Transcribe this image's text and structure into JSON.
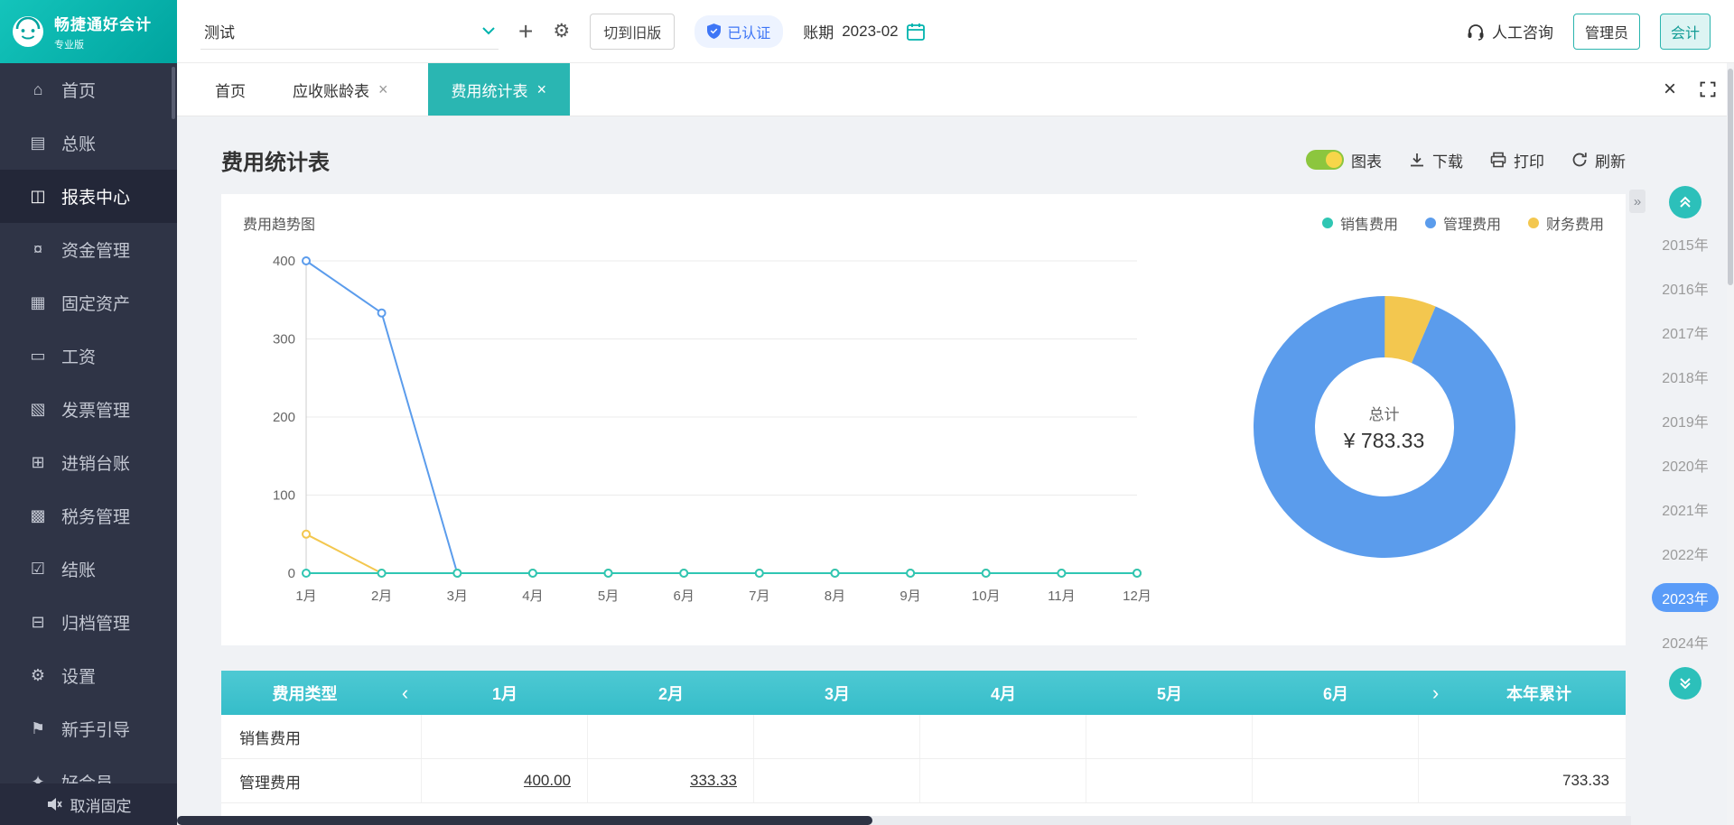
{
  "colors": {
    "brand_teal": "#00b3ad",
    "sidebar_bg": "#2f3446",
    "tab_active": "#2ab6b2",
    "table_header_teal": "#3fc0cb",
    "year_active_blue": "#5a9cf8",
    "series_sales_teal": "#2fc6b3",
    "series_admin_blue": "#5b9cec",
    "series_finance_yellow": "#f3c74f",
    "certified_blue": "#3e76f6",
    "toggle_green": "#8cc63e",
    "toggle_knob_yellow": "#f7d64a"
  },
  "logo": {
    "title": "畅捷通好会计",
    "subtitle": "专业版"
  },
  "topbar": {
    "company": "测试",
    "switch_old": "切到旧版",
    "certified": "已认证",
    "period_label": "账期",
    "period_value": "2023-02",
    "support": "人工咨询",
    "admin": "管理员",
    "role": "会计"
  },
  "tabbar": {
    "tabs": [
      {
        "label": "首页",
        "closable": false,
        "active": false
      },
      {
        "label": "应收账龄表",
        "closable": true,
        "active": false
      },
      {
        "label": "费用统计表",
        "closable": true,
        "active": true
      }
    ]
  },
  "sidebar": {
    "items": [
      {
        "id": "home",
        "label": "首页",
        "icon": "home",
        "active": false
      },
      {
        "id": "ledger",
        "label": "总账",
        "icon": "ledger",
        "active": false
      },
      {
        "id": "reports",
        "label": "报表中心",
        "icon": "report",
        "active": true
      },
      {
        "id": "funds",
        "label": "资金管理",
        "icon": "funds",
        "active": false
      },
      {
        "id": "fixed-assets",
        "label": "固定资产",
        "icon": "assets",
        "active": false
      },
      {
        "id": "salary",
        "label": "工资",
        "icon": "salary",
        "active": false
      },
      {
        "id": "invoice",
        "label": "发票管理",
        "icon": "invoice",
        "active": false
      },
      {
        "id": "inventory",
        "label": "进销台账",
        "icon": "inventory",
        "active": false
      },
      {
        "id": "tax",
        "label": "税务管理",
        "icon": "tax",
        "active": false
      },
      {
        "id": "closing",
        "label": "结账",
        "icon": "closing",
        "active": false
      },
      {
        "id": "archive",
        "label": "归档管理",
        "icon": "archive",
        "active": false
      },
      {
        "id": "settings",
        "label": "设置",
        "icon": "settings",
        "active": false
      },
      {
        "id": "guide",
        "label": "新手引导",
        "icon": "guide",
        "active": false
      },
      {
        "id": "member",
        "label": "好会员",
        "icon": "member",
        "active": false
      }
    ],
    "footer": "取消固定"
  },
  "page": {
    "title": "费用统计表",
    "toolbar": {
      "chart_toggle": "图表",
      "download": "下载",
      "print": "打印",
      "refresh": "刷新"
    }
  },
  "chart_data": [
    {
      "type": "line",
      "title": "费用趋势图",
      "categories": [
        "1月",
        "2月",
        "3月",
        "4月",
        "5月",
        "6月",
        "7月",
        "8月",
        "9月",
        "10月",
        "11月",
        "12月"
      ],
      "series": [
        {
          "name": "销售费用",
          "color": "#2fc6b3",
          "values": [
            0,
            0,
            0,
            0,
            0,
            0,
            0,
            0,
            0,
            0,
            0,
            0
          ]
        },
        {
          "name": "管理费用",
          "color": "#5b9cec",
          "values": [
            400,
            333.33,
            0,
            0,
            0,
            0,
            0,
            0,
            0,
            0,
            0,
            0
          ]
        },
        {
          "name": "财务费用",
          "color": "#f3c74f",
          "values": [
            50,
            0,
            0,
            0,
            0,
            0,
            0,
            0,
            0,
            0,
            0,
            0
          ]
        }
      ],
      "ylim": [
        0,
        400
      ],
      "yticks": [
        0,
        100,
        200,
        300,
        400
      ],
      "legend": [
        "销售费用",
        "管理费用",
        "财务费用"
      ],
      "legend_position": "top-right",
      "grid": true
    },
    {
      "type": "pie",
      "donut": true,
      "center_label": "总计",
      "center_value": "¥ 783.33",
      "total": 783.33,
      "slices": [
        {
          "name": "财务费用",
          "value": 50,
          "color": "#f3c74f"
        },
        {
          "name": "管理费用",
          "value": 733.33,
          "color": "#5b9cec"
        },
        {
          "name": "销售费用",
          "value": 0,
          "color": "#2fc6b3"
        }
      ]
    }
  ],
  "table": {
    "first_column": "费用类型",
    "month_columns": [
      "1月",
      "2月",
      "3月",
      "4月",
      "5月",
      "6月"
    ],
    "last_column": "本年累计",
    "rows": [
      {
        "name": "销售费用",
        "values": [
          "",
          "",
          "",
          "",
          "",
          ""
        ],
        "total": "",
        "links": []
      },
      {
        "name": "管理费用",
        "values": [
          "400.00",
          "333.33",
          "",
          "",
          "",
          ""
        ],
        "total": "733.33",
        "links": [
          0,
          1
        ]
      }
    ]
  },
  "year_rail": {
    "years": [
      "2015年",
      "2016年",
      "2017年",
      "2018年",
      "2019年",
      "2020年",
      "2021年",
      "2022年",
      "2023年",
      "2024年"
    ],
    "active": "2023年"
  }
}
